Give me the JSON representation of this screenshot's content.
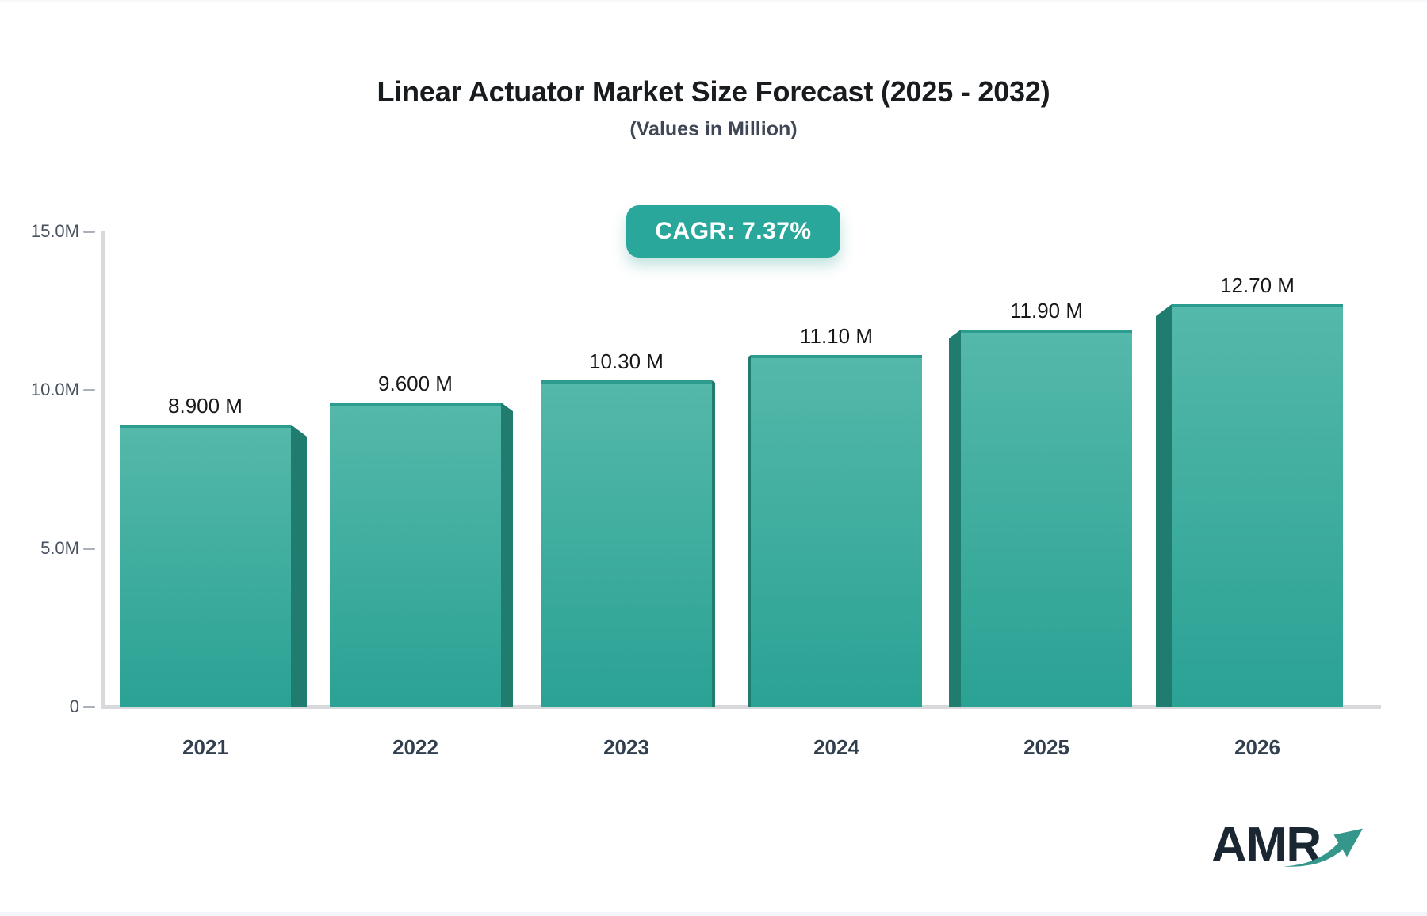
{
  "header": {
    "title": "Linear Actuator Market Size Forecast (2025 - 2032)",
    "subtitle": "(Values in Million)",
    "cagr_label": "CAGR: 7.37%"
  },
  "chart_data": {
    "type": "bar",
    "title": "Linear Actuator Market Size Forecast (2025 - 2032)",
    "subtitle": "(Values in Million)",
    "unit": "Million",
    "cagr_percent": 7.37,
    "categories": [
      "2021",
      "2022",
      "2023",
      "2024",
      "2025",
      "2026"
    ],
    "values": [
      8.9,
      9.6,
      10.3,
      11.1,
      11.9,
      12.7
    ],
    "value_labels": [
      "8.900 M",
      "9.600 M",
      "10.30 M",
      "11.10 M",
      "11.90 M",
      "12.70 M"
    ],
    "y_ticks": [
      {
        "label": "15.0M",
        "value": 15
      },
      {
        "label": "10.0M",
        "value": 10
      },
      {
        "label": "5.0M",
        "value": 5
      },
      {
        "label": "0",
        "value": 0
      }
    ],
    "ylim": [
      0,
      15
    ],
    "grid": false,
    "legend": false,
    "bar_style": {
      "face_top_color": "#54b8aa",
      "face_bottom_color": "#2aa294",
      "top_edge_color": "#2b9c8e",
      "side_color": "#1f7c6e"
    }
  },
  "footer": {
    "logo_text": "AMR"
  },
  "colors": {
    "badge_bg": "#2aa79b",
    "badge_text": "#ffffff",
    "axis_line": "#d7d9dd",
    "tick_text": "#46505e",
    "year_text": "#323f4f",
    "value_text": "#17181a",
    "title_text": "#191c1f",
    "subtitle_text": "#3f4756",
    "logo_text": "#1a2733",
    "logo_arrow": "#35968c"
  }
}
